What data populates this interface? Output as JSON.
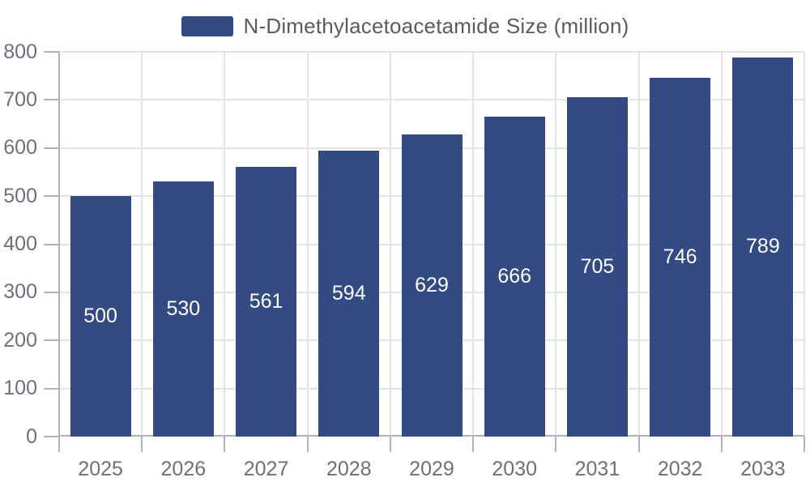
{
  "chart_data": {
    "type": "bar",
    "title": "N-Dimethylacetoacetamide Size (million)",
    "legend": [
      "N-Dimethylacetoacetamide Size (million)"
    ],
    "legend_position": "top-center",
    "categories": [
      "2025",
      "2026",
      "2027",
      "2028",
      "2029",
      "2030",
      "2031",
      "2032",
      "2033"
    ],
    "values": [
      500,
      530,
      561,
      594,
      629,
      666,
      705,
      746,
      789
    ],
    "value_labels": [
      "500",
      "530",
      "561",
      "594",
      "629",
      "666",
      "705",
      "746",
      "789"
    ],
    "value_label_position": "inside-center",
    "xlabel": "",
    "ylabel": "",
    "ylim": [
      0,
      800
    ],
    "ytick_step": 100,
    "ytick_labels": [
      "0",
      "100",
      "200",
      "300",
      "400",
      "500",
      "600",
      "700",
      "800"
    ],
    "grid": true,
    "colors": {
      "bar_fill": "#344a83",
      "value_label_text": "#ffffff",
      "axis_tick_text": "#6d7078",
      "legend_text": "#595b60",
      "gridline": "#e2e4e9",
      "axis_line": "#b0b3ba",
      "background": "#ffffff"
    }
  }
}
